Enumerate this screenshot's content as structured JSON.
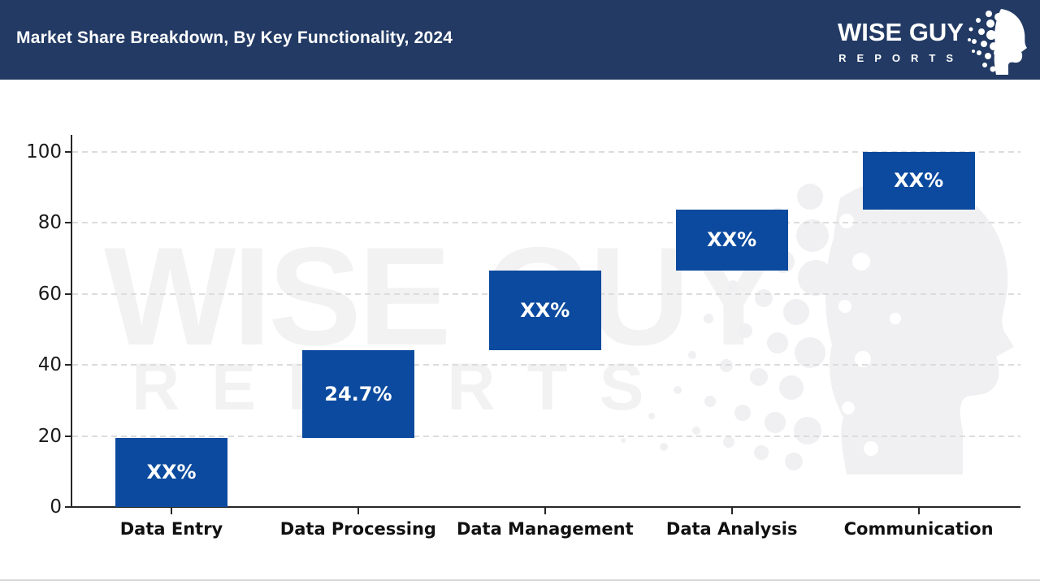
{
  "header": {
    "title": "Market Share Breakdown, By Key Functionality, 2024",
    "logo_line1": "WISE GUY",
    "logo_line2": "REPORTS"
  },
  "watermark": {
    "line1": "WISE GUY",
    "line2": "REPORTS"
  },
  "chart_data": {
    "type": "bar",
    "variant": "floating-waterfall",
    "title": "Market Share Breakdown, By Key Functionality, 2024",
    "categories": [
      "Data Entry",
      "Data Processing",
      "Data Management",
      "Data Analysis",
      "Communication"
    ],
    "bars": [
      {
        "category": "Data Entry",
        "start": 0,
        "end": 19.5,
        "label": "XX%"
      },
      {
        "category": "Data Processing",
        "start": 19.5,
        "end": 44.2,
        "label": "24.7%"
      },
      {
        "category": "Data Management",
        "start": 44.2,
        "end": 66.6,
        "label": "XX%"
      },
      {
        "category": "Data Analysis",
        "start": 66.6,
        "end": 83.8,
        "label": "XX%"
      },
      {
        "category": "Communication",
        "start": 83.8,
        "end": 100,
        "label": "XX%"
      }
    ],
    "yticks": [
      0,
      20,
      40,
      60,
      80,
      100
    ],
    "ylim": [
      0,
      105
    ],
    "xlabel": "",
    "ylabel": "",
    "legend": "none",
    "grid": "horizontal-dashed",
    "colors": {
      "bar": "#0b4a9e",
      "bar_label": "#ffffff",
      "axis": "#262626",
      "gridline": "#dcdcdc",
      "header_bg": "#223a64",
      "watermark": "#f2f2f2"
    }
  }
}
